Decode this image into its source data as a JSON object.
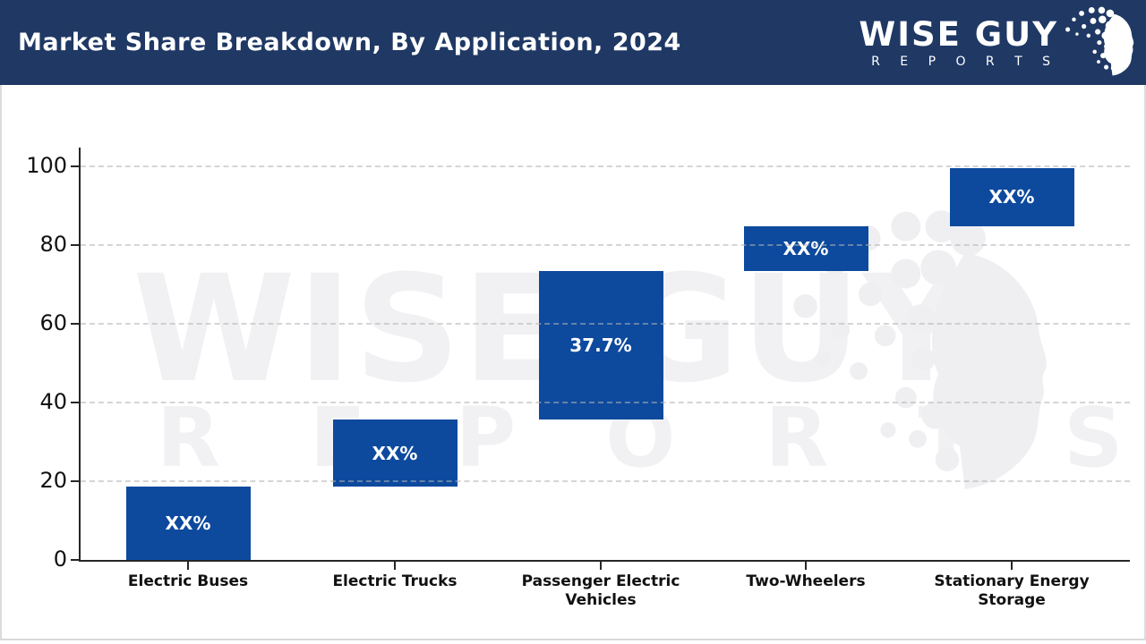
{
  "header": {
    "title": "Market Share Breakdown, By Application, 2024",
    "bg_color": "#1f3864",
    "logo": {
      "line1": "WISE GUY",
      "line2": "R E P O R T S"
    }
  },
  "watermark": {
    "line1": "WISE GUY",
    "line2": "R E P O R T S"
  },
  "chart_data": {
    "type": "bar",
    "subtype": "waterfall",
    "title": "Market Share Breakdown, By Application, 2024",
    "xlabel": "",
    "ylabel": "",
    "ylim": [
      0,
      104
    ],
    "yticks": [
      0,
      20,
      40,
      60,
      80,
      100
    ],
    "grid": "horizontal-dashed",
    "legend": "none",
    "bar_color": "#0d4a9e",
    "bar_label_color": "#ffffff",
    "categories": [
      "Electric Buses",
      "Electric Trucks",
      "Passenger Electric Vehicles",
      "Two-Wheelers",
      "Stationary Energy Storage"
    ],
    "segments": [
      {
        "category": "Electric Buses",
        "start": 0,
        "end": 18.6,
        "label": "XX%"
      },
      {
        "category": "Electric Trucks",
        "start": 18.6,
        "end": 35.7,
        "label": "XX%"
      },
      {
        "category": "Passenger Electric Vehicles",
        "start": 35.7,
        "end": 73.4,
        "label": "37.7%"
      },
      {
        "category": "Two-Wheelers",
        "start": 73.4,
        "end": 84.8,
        "label": "XX%"
      },
      {
        "category": "Stationary Energy Storage",
        "start": 84.8,
        "end": 99.6,
        "label": "XX%"
      }
    ]
  }
}
